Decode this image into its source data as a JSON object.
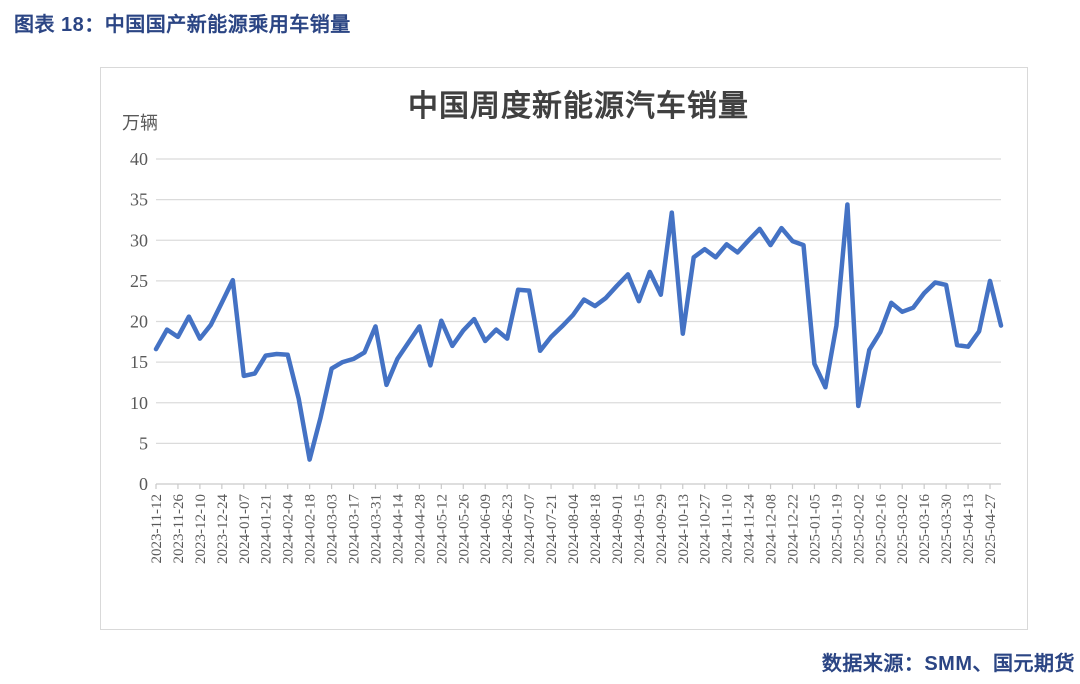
{
  "page_title": "图表 18：中国国产新能源乘用车销量",
  "source_note": "数据来源：SMM、国元期货",
  "colors": {
    "line": "#4472C4",
    "grid": "#DBDBDB",
    "axis": "#C9C9C9",
    "axis_text": "#595959",
    "chart_title_text": "#404040",
    "heading_text": "#2B4584"
  },
  "chart_data": {
    "type": "line",
    "title": "中国周度新能源汽车销量",
    "unit_label": "万辆",
    "xlabel": "",
    "ylabel": "万辆",
    "ylim": [
      0,
      40
    ],
    "yticks": [
      0,
      5,
      10,
      15,
      20,
      25,
      30,
      35,
      40
    ],
    "grid": true,
    "legend": "none",
    "x_label_every": 2,
    "x_label_rotation": -90,
    "categories": [
      "2023-11-12",
      "2023-11-19",
      "2023-11-26",
      "2023-12-03",
      "2023-12-10",
      "2023-12-17",
      "2023-12-24",
      "2023-12-31",
      "2024-01-07",
      "2024-01-14",
      "2024-01-21",
      "2024-01-28",
      "2024-02-04",
      "2024-02-11",
      "2024-02-18",
      "2024-02-25",
      "2024-03-03",
      "2024-03-10",
      "2024-03-17",
      "2024-03-24",
      "2024-03-31",
      "2024-04-07",
      "2024-04-14",
      "2024-04-21",
      "2024-04-28",
      "2024-05-05",
      "2024-05-12",
      "2024-05-19",
      "2024-05-26",
      "2024-06-02",
      "2024-06-09",
      "2024-06-16",
      "2024-06-23",
      "2024-06-30",
      "2024-07-07",
      "2024-07-14",
      "2024-07-21",
      "2024-07-28",
      "2024-08-04",
      "2024-08-11",
      "2024-08-18",
      "2024-08-25",
      "2024-09-01",
      "2024-09-08",
      "2024-09-15",
      "2024-09-22",
      "2024-09-29",
      "2024-10-06",
      "2024-10-13",
      "2024-10-20",
      "2024-10-27",
      "2024-11-03",
      "2024-11-10",
      "2024-11-17",
      "2024-11-24",
      "2024-12-01",
      "2024-12-08",
      "2024-12-15",
      "2024-12-22",
      "2024-12-29",
      "2025-01-05",
      "2025-01-12",
      "2025-01-19",
      "2025-01-26",
      "2025-02-02",
      "2025-02-09",
      "2025-02-16",
      "2025-02-23",
      "2025-03-02",
      "2025-03-09",
      "2025-03-16",
      "2025-03-23",
      "2025-03-30",
      "2025-04-06",
      "2025-04-13",
      "2025-04-20",
      "2025-04-27",
      "2025-05-04"
    ],
    "values": [
      16.6,
      19.0,
      18.1,
      20.6,
      17.9,
      19.6,
      22.3,
      25.1,
      13.3,
      13.6,
      15.8,
      16.0,
      15.9,
      10.5,
      3.0,
      8.2,
      14.2,
      15.0,
      15.4,
      16.2,
      19.4,
      12.2,
      15.4,
      17.4,
      19.4,
      14.6,
      20.1,
      17.0,
      18.9,
      20.3,
      17.6,
      19.0,
      17.9,
      23.9,
      23.8,
      16.4,
      18.1,
      19.4,
      20.8,
      22.7,
      21.9,
      22.9,
      24.4,
      25.8,
      22.5,
      26.1,
      23.3,
      33.4,
      18.5,
      27.9,
      28.9,
      27.9,
      29.5,
      28.5,
      30.0,
      31.4,
      29.4,
      31.5,
      29.9,
      29.4,
      14.8,
      11.9,
      19.5,
      34.4,
      9.6,
      16.5,
      18.7,
      22.3,
      21.2,
      21.7,
      23.5,
      24.8,
      24.5,
      17.1,
      16.9,
      18.8,
      25.0,
      19.5
    ]
  }
}
